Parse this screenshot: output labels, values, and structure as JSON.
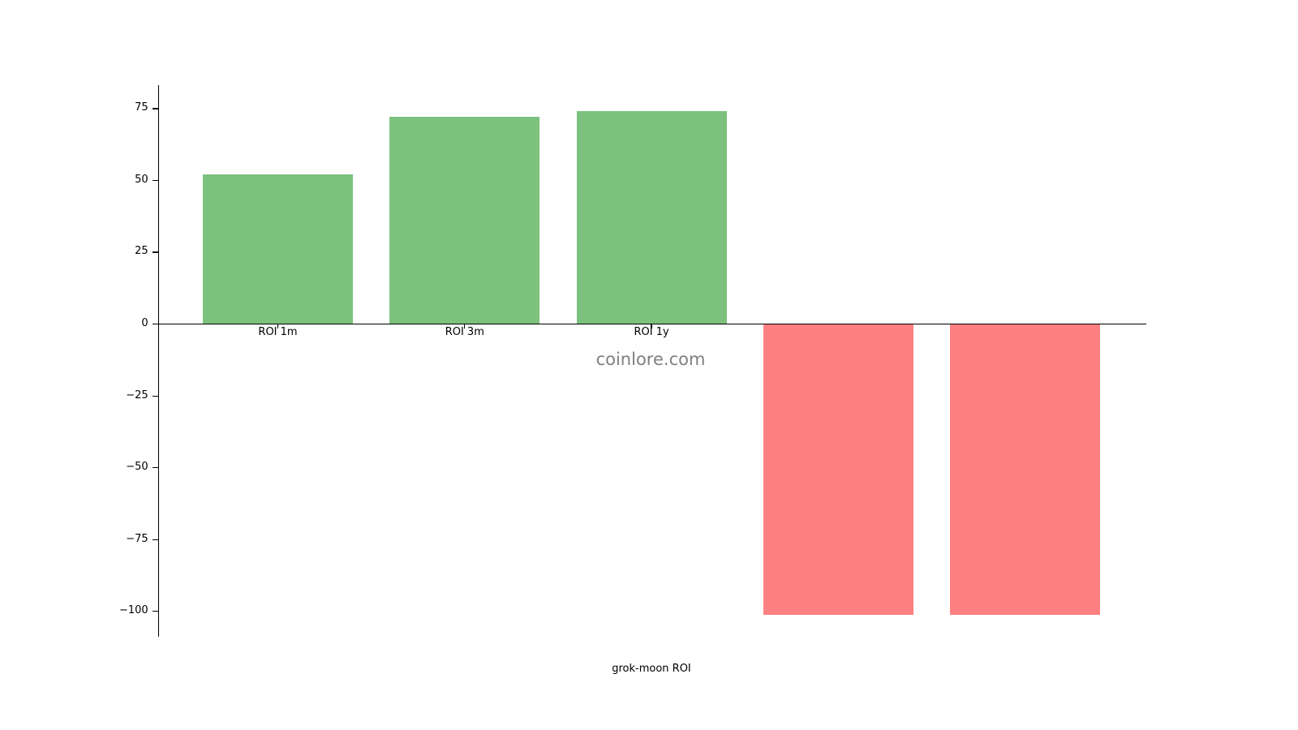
{
  "watermark": "coinlore.com",
  "footer_title": "grok-moon ROI",
  "chart_data": {
    "type": "bar",
    "title": "grok-moon ROI",
    "categories": [
      "ROI 1m",
      "ROI 3m",
      "ROI 1y",
      "",
      ""
    ],
    "values": [
      52,
      72,
      74,
      -101,
      -101
    ],
    "bar_colors": [
      "#7cc17e",
      "#7cc17e",
      "#7cc17e",
      "#ff8080",
      "#ff8080"
    ],
    "positive_color": "#7cc17e",
    "negative_color": "#ff8080",
    "yticks": [
      75,
      50,
      25,
      0,
      -25,
      -50,
      -75,
      -100
    ],
    "ylim": [
      -109,
      83
    ],
    "xlabel": "",
    "ylabel": "",
    "grid": false,
    "legend": "none",
    "axis_color": "#000000",
    "tick_label_color": "#000000",
    "watermark_text": "coinlore.com",
    "watermark_color": "#7f7f7f",
    "background_color": "#ffffff"
  }
}
